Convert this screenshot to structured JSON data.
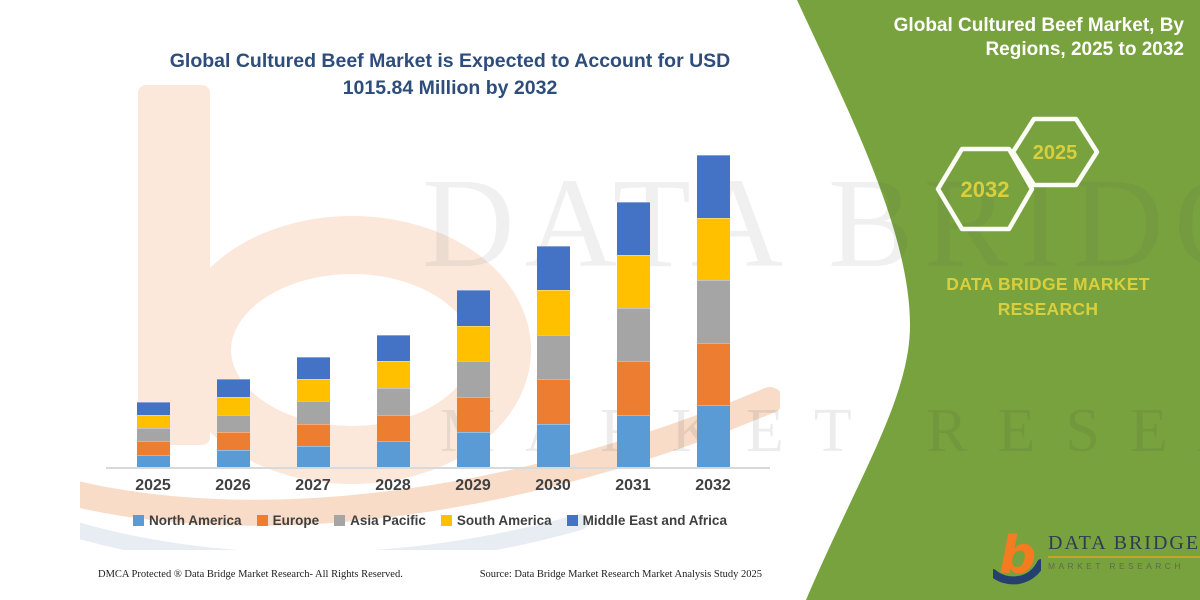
{
  "colors": {
    "panel_green": "#78A23E",
    "title_blue": "#2E4D7B",
    "hex_text_yellow": "#D8CE3E",
    "axis_gray": "#D9D9D9",
    "label_gray": "#3F3F3F",
    "logo_orange": "#F47B20",
    "logo_navy": "#24406E",
    "logo_underline_gold": "#C9A227",
    "watermark_peach": "#FBE8DB"
  },
  "chart_data": {
    "type": "bar",
    "stacked": true,
    "title": "Global Cultured Beef Market is Expected to Account for USD 1015.84 Million by 2032",
    "title_lines": [
      "Global Cultured Beef Market is Expected to Account for USD",
      "1015.84 Million by 2032"
    ],
    "unit": "USD Million",
    "categories": [
      "2025",
      "2026",
      "2027",
      "2028",
      "2029",
      "2030",
      "2031",
      "2032"
    ],
    "series": [
      {
        "name": "North America",
        "color": "#5B9BD5",
        "values": [
          43.2,
          57.8,
          72.0,
          86.5,
          115.6,
          144.2,
          173.0,
          203.17
        ]
      },
      {
        "name": "Europe",
        "color": "#ED7D31",
        "values": [
          43.2,
          57.8,
          72.0,
          86.5,
          115.6,
          144.2,
          173.0,
          203.17
        ]
      },
      {
        "name": "Asia Pacific",
        "color": "#A5A5A5",
        "values": [
          43.2,
          57.8,
          72.0,
          86.5,
          115.6,
          144.2,
          173.0,
          203.17
        ]
      },
      {
        "name": "South America",
        "color": "#FFC000",
        "values": [
          43.2,
          57.8,
          72.0,
          86.5,
          115.6,
          144.2,
          173.0,
          203.17
        ]
      },
      {
        "name": "Middle East and Africa",
        "color": "#4472C4",
        "values": [
          43.2,
          57.8,
          72.0,
          86.5,
          115.6,
          144.2,
          173.0,
          203.16
        ]
      }
    ],
    "totals_estimated": [
      216.0,
      289.0,
      360.0,
      432.5,
      578.0,
      721.0,
      865.0,
      1015.84
    ],
    "ylim": [
      0,
      1015.84
    ],
    "value_axis_visible": false,
    "grid": false,
    "legend_position": "bottom"
  },
  "panel": {
    "title": "Global Cultured Beef Market, By Regions, 2025 to 2032",
    "title_lines": [
      "Global Cultured Beef Market, By",
      "Regions, 2025 to 2032"
    ],
    "hexagon_badges": [
      {
        "label": "2032"
      },
      {
        "label": "2025"
      }
    ],
    "brand_name": "DATA BRIDGE MARKET RESEARCH"
  },
  "logo": {
    "glyph": "b",
    "title": "DATA BRIDGE",
    "subtitle": "MARKET RESEARCH"
  },
  "watermark": {
    "line1": "DATA BRIDGE",
    "line2": "MARKET RESEARCH"
  },
  "footer": {
    "left": "DMCA Protected ® Data Bridge Market Research-  All Rights Reserved.",
    "right": "Source: Data Bridge Market Research  Market Analysis Study 2025"
  }
}
